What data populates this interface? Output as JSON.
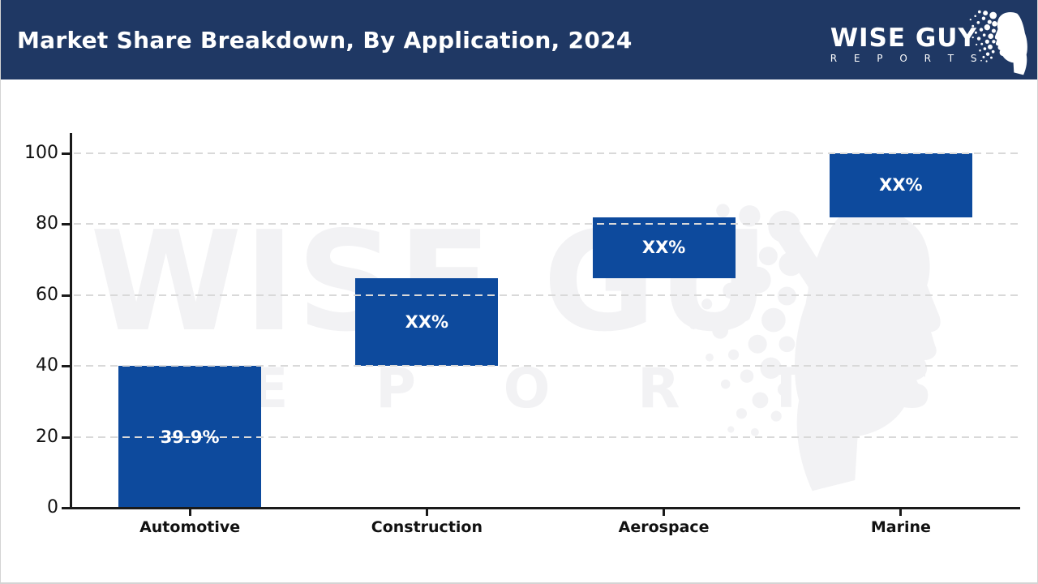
{
  "header": {
    "title": "Market Share Breakdown, By Application, 2024",
    "bg_color": "#1f3864",
    "logo": {
      "line1": "WISE GUY",
      "line2": "R E P O R T S"
    }
  },
  "watermark": {
    "line1": "WISE GUY",
    "line2": "R E P O R T S"
  },
  "chart_data": {
    "type": "bar",
    "subtype": "waterfall-stacked-percent",
    "title": "Market Share Breakdown, By Application, 2024",
    "categories": [
      "Automotive",
      "Construction",
      "Aerospace",
      "Marine"
    ],
    "segments": [
      {
        "category": "Automotive",
        "start": 0,
        "end": 39.9,
        "value": 39.9,
        "label": "39.9%"
      },
      {
        "category": "Construction",
        "start": 39.9,
        "end": 64.8,
        "value": 24.9,
        "label": "XX%"
      },
      {
        "category": "Aerospace",
        "start": 64.8,
        "end": 81.9,
        "value": 17.1,
        "label": "XX%"
      },
      {
        "category": "Marine",
        "start": 81.9,
        "end": 100,
        "value": 18.1,
        "label": "XX%"
      }
    ],
    "xlabel": "",
    "ylabel": "",
    "ylim": [
      0,
      100
    ],
    "yticks": [
      0,
      20,
      40,
      60,
      80,
      100
    ],
    "grid": "horizontal-dashed",
    "legend": "none",
    "bar_color": "#0d4a9d",
    "label_color": "#ffffff",
    "axis_color": "#1a1a1a",
    "grid_color": "#d9d9d9"
  }
}
